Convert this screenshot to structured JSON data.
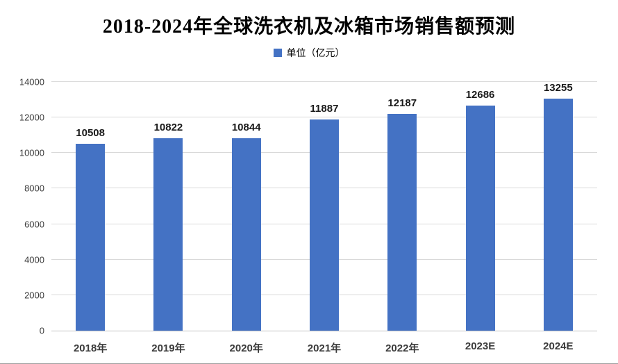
{
  "title": "2018-2024年全球洗衣机及冰箱市场销售额预测",
  "legend": {
    "label": "单位（亿元）",
    "color": "#4472C4"
  },
  "chart_data": {
    "type": "bar",
    "title": "2018-2024年全球洗衣机及冰箱市场销售额预测",
    "legend_entries": [
      "单位（亿元）"
    ],
    "categories": [
      "2018年",
      "2019年",
      "2020年",
      "2021年",
      "2022年",
      "2023E",
      "2024E"
    ],
    "values": [
      10508,
      10822,
      10844,
      11887,
      12187,
      12686,
      13255
    ],
    "xlabel": "",
    "ylabel": "",
    "ylim": [
      0,
      14000
    ],
    "ytick_step": 2000,
    "ytick_labels": [
      "0",
      "2000",
      "4000",
      "6000",
      "8000",
      "10000",
      "12000",
      "14000"
    ],
    "bar_color": "#4472C4",
    "grid": true,
    "legend_position": "top-center",
    "data_labels": true
  }
}
